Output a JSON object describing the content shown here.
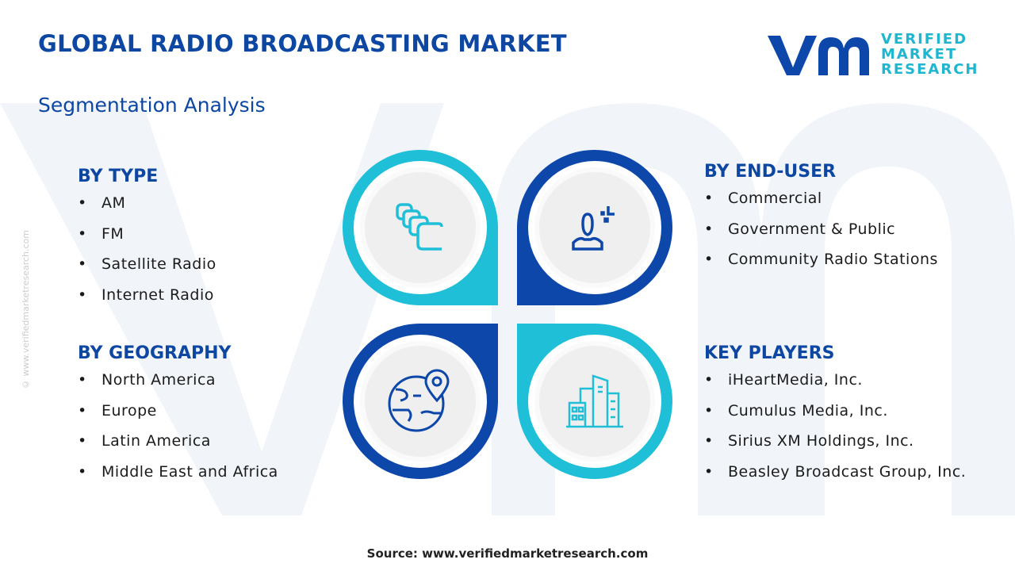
{
  "title": "GLOBAL RADIO BROADCASTING MARKET",
  "subtitle": "Segmentation Analysis",
  "logo": {
    "line1": "VERIFIED",
    "line2": "MARKET",
    "line3": "RESEARCH",
    "mark": "vmr"
  },
  "side_text": "© www.verifiedmarketresearch.com",
  "colors": {
    "dark_blue": "#0d47a9",
    "cyan": "#1fbfd8",
    "heading": "#0d47a1"
  },
  "segments": {
    "type": {
      "heading": "BY TYPE",
      "icon": "stacked-cards-icon",
      "items": [
        "AM",
        "FM",
        "Satellite Radio",
        "Internet Radio"
      ]
    },
    "end_user": {
      "heading": "BY END-USER",
      "icon": "user-icon",
      "items": [
        "Commercial",
        "Government & Public",
        "Community Radio Stations"
      ]
    },
    "geography": {
      "heading": "BY GEOGRAPHY",
      "icon": "globe-pin-icon",
      "items": [
        "North America",
        "Europe",
        "Latin America",
        "Middle East and Africa"
      ]
    },
    "key_players": {
      "heading": "KEY PLAYERS",
      "icon": "buildings-icon",
      "items": [
        "iHeartMedia, Inc.",
        "Cumulus Media, Inc.",
        "Sirius XM Holdings, Inc.",
        "Beasley Broadcast Group, Inc."
      ]
    }
  },
  "source": "Source: www.verifiedmarketresearch.com"
}
